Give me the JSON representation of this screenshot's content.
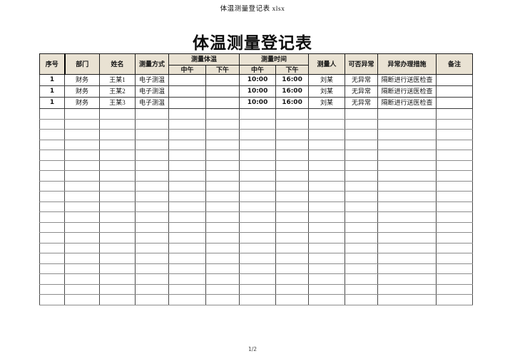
{
  "document": {
    "file_caption": "体温测量登记表 xlsx",
    "title": "体温测量登记表",
    "page_indicator": "1/2"
  },
  "table": {
    "headers": {
      "serial": "序号",
      "department": "部门",
      "name": "姓名",
      "method": "测量方式",
      "temperature_group": "测量体温",
      "time_group": "测量时间",
      "temp_noon": "中午",
      "temp_afternoon": "下午",
      "time_noon": "中午",
      "time_afternoon": "下午",
      "measurer": "测量人",
      "abnormal": "可否异常",
      "measures": "异常办理措施",
      "remarks": "备注"
    },
    "rows": [
      [
        "1",
        "财务",
        "王某1",
        "电子测温",
        "",
        "",
        "10:00",
        "16:00",
        "刘某",
        "无异常",
        "隔断进行送医检查",
        ""
      ],
      [
        "1",
        "财务",
        "王某2",
        "电子测温",
        "",
        "",
        "10:00",
        "16:00",
        "刘某",
        "无异常",
        "隔断进行送医检查",
        ""
      ],
      [
        "1",
        "财务",
        "王某3",
        "电子测温",
        "",
        "",
        "10:00",
        "16:00",
        "刘某",
        "无异常",
        "隔断进行送医检查",
        ""
      ]
    ],
    "empty_row_count": 19,
    "column_count": 12
  },
  "colors": {
    "header_bg": "#e9e2d3",
    "border_dark": "#1a1a1a",
    "grid_light": "#8c8c8c",
    "page_bg": "#ffffff"
  }
}
